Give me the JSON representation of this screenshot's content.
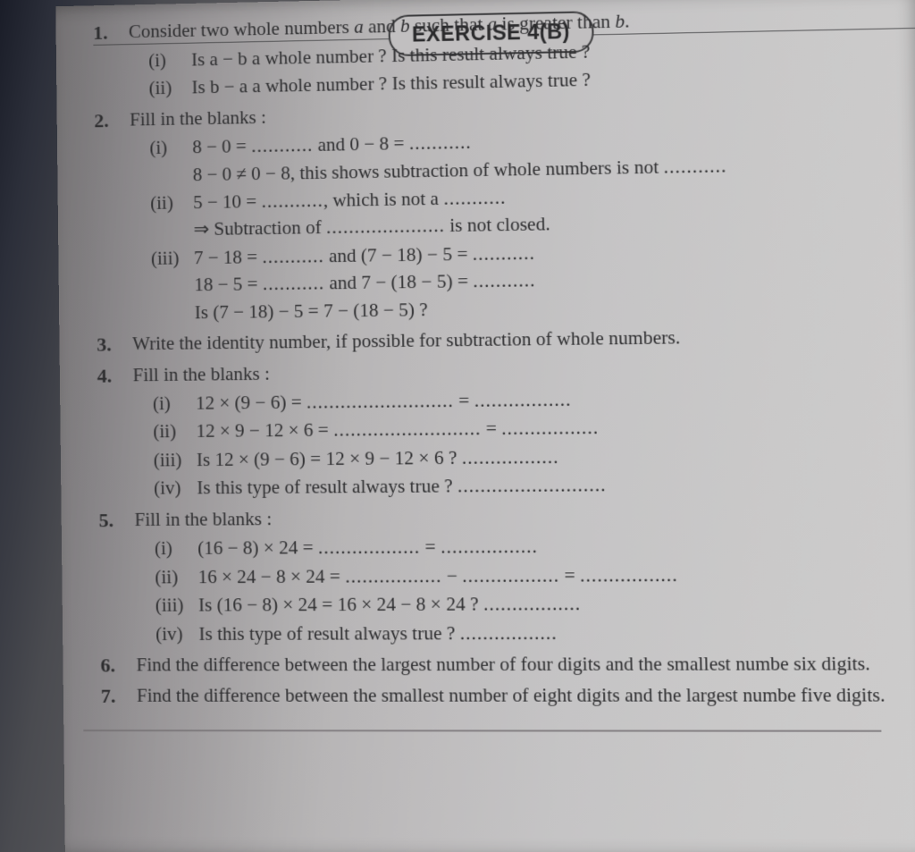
{
  "badge": "EXERCISE 4(B)",
  "q1": {
    "num": "1.",
    "stem_a": "Consider two whole numbers ",
    "stem_b": " and ",
    "stem_c": " such that ",
    "stem_d": " is greater than ",
    "stem_e": ".",
    "var_a": "a",
    "var_b": "b",
    "i_rn": "(i)",
    "i": "Is a − b a whole number ? Is this result always true ?",
    "ii_rn": "(ii)",
    "ii": "Is b − a a whole number ? Is this result always true ?"
  },
  "q2": {
    "num": "2.",
    "stem": "Fill in the blanks :",
    "i_rn": "(i)",
    "i_l1a": "8 − 0 = ",
    "i_l1b": " and 0 − 8 = ",
    "i_l2a": "8 − 0 ≠ 0 − 8, this shows subtraction of whole numbers is not ",
    "ii_rn": "(ii)",
    "ii_l1a": "5 − 10 = ",
    "ii_l1b": ", which is not a ",
    "ii_l2a": "⇒ Subtraction of ",
    "ii_l2b": " is not closed.",
    "iii_rn": "(iii)",
    "iii_l1a": "7 − 18 = ",
    "iii_l1b": " and (7 − 18) − 5 = ",
    "iii_l2a": "18 − 5 = ",
    "iii_l2b": " and 7 − (18 − 5) = ",
    "iii_l3": "Is (7 − 18) − 5 = 7 − (18 − 5) ?",
    "dots": "...........",
    "dots_long": "....................."
  },
  "q3": {
    "num": "3.",
    "stem": "Write the identity number, if possible for subtraction of whole numbers."
  },
  "q4": {
    "num": "4.",
    "stem": "Fill in the blanks :",
    "i_rn": "(i)",
    "i_a": "12 × (9 − 6) = ",
    "i_b": " = ",
    "ii_rn": "(ii)",
    "ii_a": "12 × 9 − 12 × 6 = ",
    "ii_b": " = ",
    "iii_rn": "(iii)",
    "iii_a": "Is 12 × (9 − 6) = 12 × 9 − 12 × 6 ? ",
    "iv_rn": "(iv)",
    "iv_a": "Is this type of result always true ? ",
    "dots": "..........................",
    "dots2": "................."
  },
  "q5": {
    "num": "5.",
    "stem": "Fill in the blanks :",
    "i_rn": "(i)",
    "i_a": "(16 − 8) × 24 = ",
    "i_b": " = ",
    "ii_rn": "(ii)",
    "ii_a": "16 × 24 − 8 × 24 = ",
    "ii_b": " − ",
    "ii_c": " = ",
    "iii_rn": "(iii)",
    "iii_a": "Is (16 − 8) × 24 = 16 × 24 − 8 × 24 ? ",
    "iv_rn": "(iv)",
    "iv_a": "Is this type of result always true ? ",
    "dots": "..................",
    "dots2": "................."
  },
  "q6": {
    "num": "6.",
    "stem": "Find the difference between the largest number of four digits and the smallest numbe six digits."
  },
  "q7": {
    "num": "7.",
    "stem": "Find the difference between the smallest number of eight digits and the largest numbe five digits."
  }
}
